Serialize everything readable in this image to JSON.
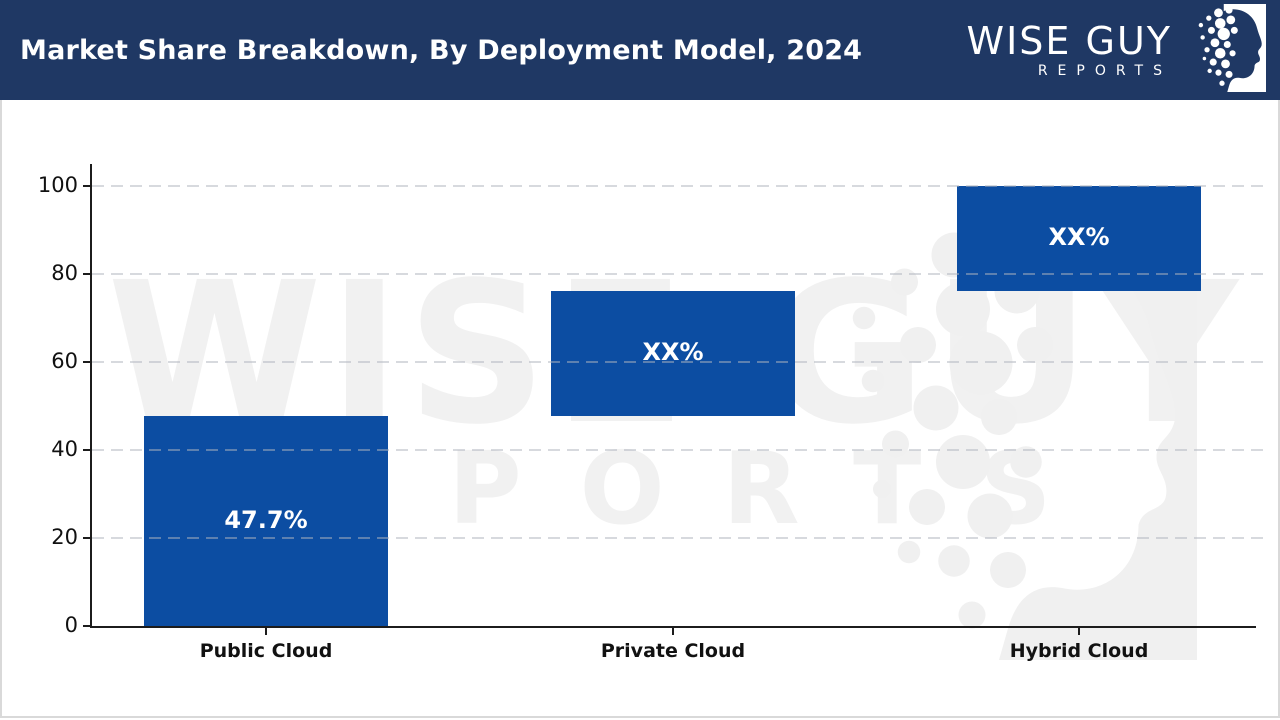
{
  "header": {
    "title": "Market Share Breakdown, By Deployment Model, 2024",
    "logo_line1": "WISE GUY",
    "logo_line2": "REPORTS"
  },
  "watermark": {
    "line1": "WISE GUY",
    "line2": "REPORTS"
  },
  "colors": {
    "header_bg": "#1f3864",
    "bar": "#0c4da2",
    "bar_label": "#ffffff",
    "axis": "#1c1c1c",
    "grid": "#c3c8d2",
    "watermark": "#f1f1f1"
  },
  "chart_data": {
    "type": "bar",
    "subtype": "stacked-range-waterfall",
    "title": "Market Share Breakdown, By Deployment Model, 2024",
    "categories": [
      "Public Cloud",
      "Private Cloud",
      "Hybrid Cloud"
    ],
    "bars": [
      {
        "category": "Public Cloud",
        "start": 0,
        "end": 47.7,
        "label": "47.7%"
      },
      {
        "category": "Private Cloud",
        "start": 47.7,
        "end": 76.2,
        "label": "XX%"
      },
      {
        "category": "Hybrid Cloud",
        "start": 76.2,
        "end": 100,
        "label": "XX%"
      }
    ],
    "ylim": [
      0,
      100
    ],
    "yticks": [
      0,
      20,
      40,
      60,
      80,
      100
    ],
    "grid": "horizontal-dashed",
    "legend": "none"
  }
}
